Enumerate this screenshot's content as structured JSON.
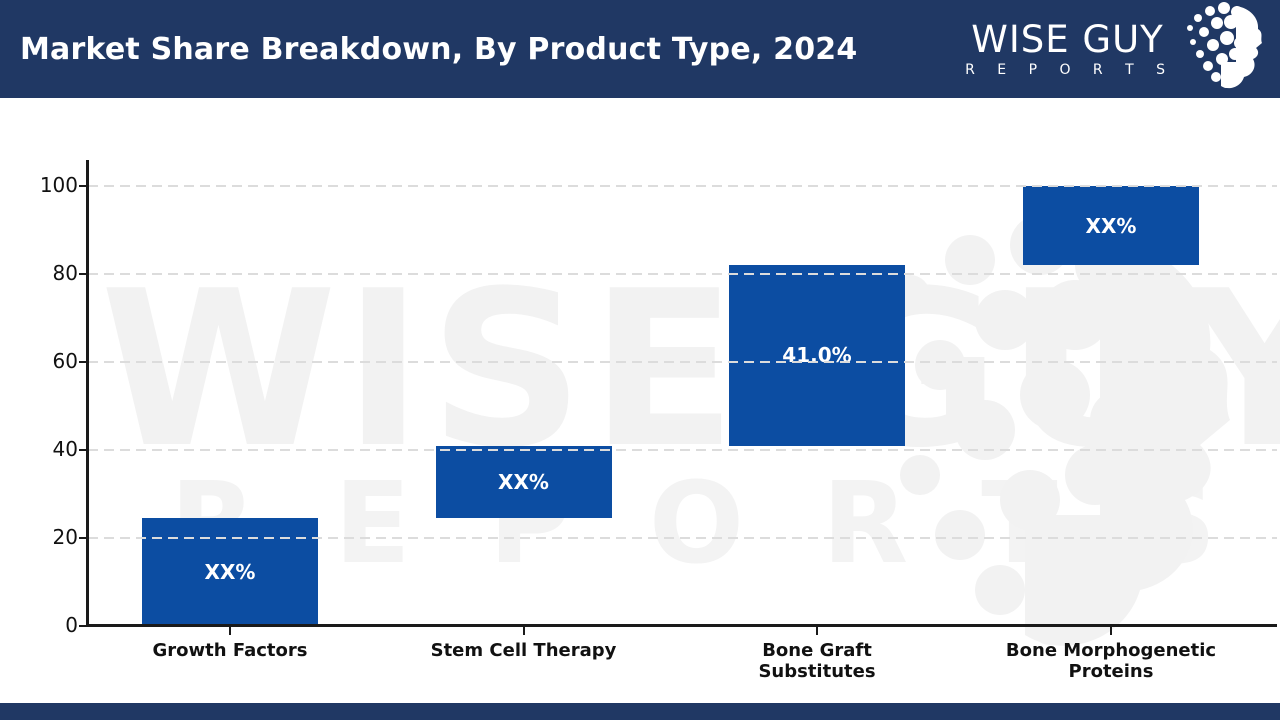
{
  "header": {
    "title": "Market Share Breakdown, By Product Type, 2024",
    "bg_color": "#203864",
    "logo": {
      "line1": "WISE GUY",
      "line2": "R E P O R T S"
    }
  },
  "watermark": {
    "line1": "WISE GUY",
    "line2": "REPORTS"
  },
  "chart_data": {
    "type": "bar",
    "subtype": "waterfall",
    "title": "Market Share Breakdown, By Product Type, 2024",
    "categories": [
      "Growth Factors",
      "Stem Cell Therapy",
      "Bone Graft\nSubstitutes",
      "Bone Morphogenetic\nProteins"
    ],
    "segments": [
      {
        "category": "Growth Factors",
        "label": "XX%",
        "start": 0,
        "end": 24.5,
        "value": 24.5
      },
      {
        "category": "Stem Cell Therapy",
        "label": "XX%",
        "start": 24.5,
        "end": 41,
        "value": 16.5
      },
      {
        "category": "Bone Graft Substitutes",
        "label": "41.0%",
        "start": 41,
        "end": 82,
        "value": 41.0
      },
      {
        "category": "Bone Morphogenetic Proteins",
        "label": "XX%",
        "start": 82,
        "end": 100,
        "value": 18.0
      }
    ],
    "yticks": [
      0,
      20,
      40,
      60,
      80,
      100
    ],
    "ylim": [
      0,
      105
    ],
    "xlabel": "",
    "ylabel": "",
    "grid": "horizontal dashed, drawn over bars",
    "legend": "none",
    "colors": {
      "bar": "#0c4da2",
      "bar_label": "#ffffff",
      "grid": "#dcdcdc",
      "axis": "#1a1a1a",
      "watermark": "#f2f2f2"
    }
  }
}
